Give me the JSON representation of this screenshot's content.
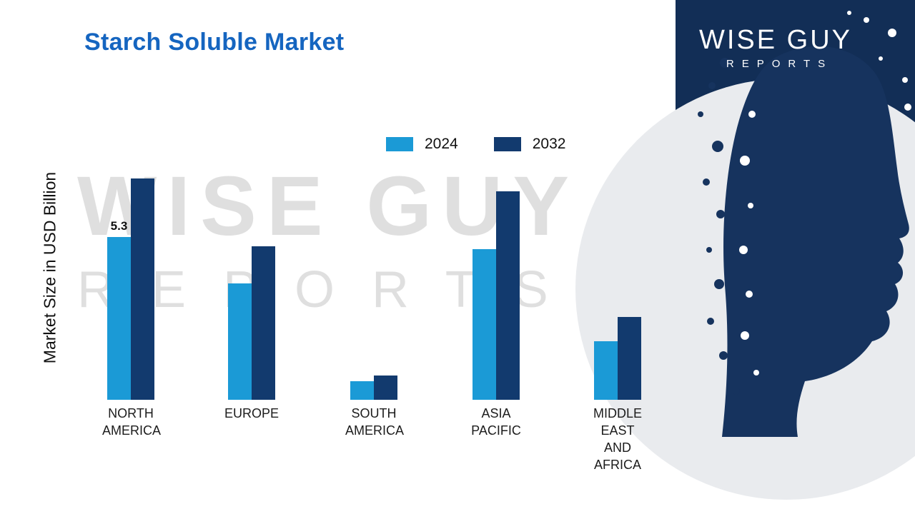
{
  "title": "Starch Soluble Market",
  "brand": {
    "name": "WISE GUY",
    "subtitle": "REPORTS"
  },
  "watermark": {
    "line1": "WISE GUY",
    "line2": "REPORTS"
  },
  "colors": {
    "title_blue": "#1565c0",
    "bar_2024": "#1b9ad6",
    "bar_2032": "#123a6e",
    "corner_navy": "#122e56",
    "circle_gray": "#e9ebee"
  },
  "chart_data": {
    "type": "bar",
    "title": "Starch Soluble Market",
    "ylabel": "Market Size in USD Billion",
    "xlabel": "",
    "ylim": [
      0,
      8
    ],
    "grid": false,
    "legend_position": "top-center",
    "categories": [
      "NORTH AMERICA",
      "EUROPE",
      "SOUTH AMERICA",
      "ASIA PACIFIC",
      "MIDDLE EAST AND AFRICA"
    ],
    "series": [
      {
        "name": "2024",
        "color": "#1b9ad6",
        "values": [
          5.3,
          3.8,
          0.6,
          4.9,
          1.9
        ]
      },
      {
        "name": "2032",
        "color": "#123a6e",
        "values": [
          7.2,
          5.0,
          0.8,
          6.8,
          2.7
        ]
      }
    ],
    "annotations": [
      {
        "series": "2024",
        "category": "NORTH AMERICA",
        "text": "5.3"
      }
    ]
  }
}
